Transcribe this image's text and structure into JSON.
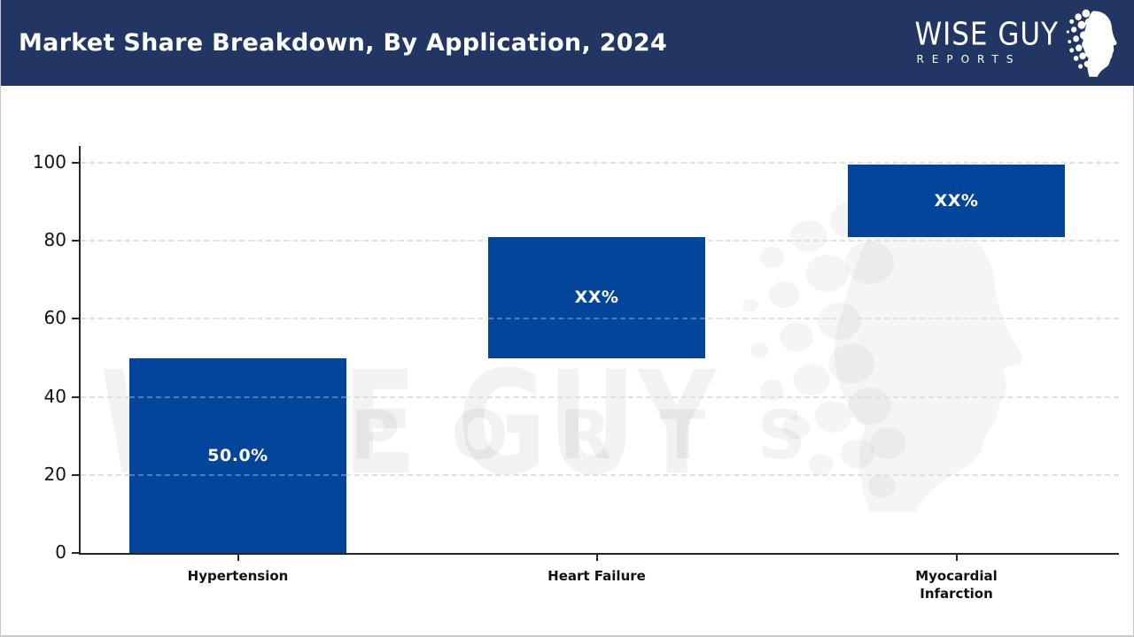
{
  "header": {
    "title": "Market Share Breakdown, By Application, 2024",
    "logo": {
      "line1": "WISE GUY",
      "line2": "REPORTS"
    }
  },
  "watermark": {
    "line1": "WISE GUY",
    "line2": "REPORTS"
  },
  "colors": {
    "header_bg": "#213662",
    "bar": "#04459c",
    "bar_label": "#ffffff",
    "gridline": "#e0e0e0",
    "axis": "#262626"
  },
  "chart_data": {
    "type": "bar",
    "variant": "waterfall-style floating bars",
    "title": "Market Share Breakdown, By Application, 2024",
    "xlabel": "",
    "ylabel": "",
    "categories": [
      "Hypertension",
      "Heart Failure",
      "Myocardial Infarction"
    ],
    "segments": [
      {
        "category": "Hypertension",
        "start": 0,
        "end": 50,
        "label": "50.0%"
      },
      {
        "category": "Heart Failure",
        "start": 50,
        "end": 81,
        "label": "XX%"
      },
      {
        "category": "Myocardial Infarction",
        "start": 81,
        "end": 99.5,
        "label": "XX%"
      }
    ],
    "y_ticks": [
      0,
      20,
      40,
      60,
      80,
      100
    ],
    "ylim": [
      0,
      105
    ],
    "grid": "horizontal dashed",
    "legend": "none",
    "bar_color": "#04459c",
    "label_color": "#ffffff"
  }
}
